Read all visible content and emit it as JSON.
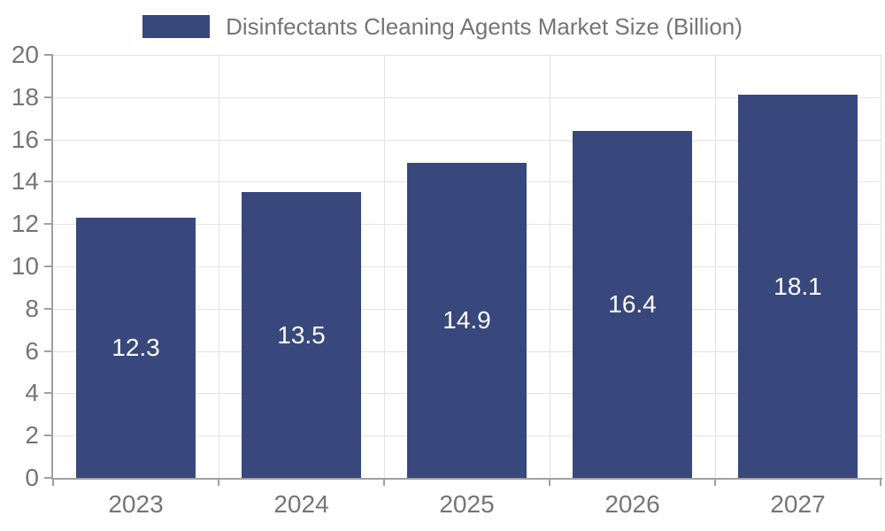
{
  "legend": {
    "label": "Disinfectants Cleaning Agents Market Size (Billion)"
  },
  "chart_data": {
    "type": "bar",
    "title": "Disinfectants Cleaning Agents Market Size (Billion)",
    "categories": [
      "2023",
      "2024",
      "2025",
      "2026",
      "2027"
    ],
    "values": [
      12.3,
      13.5,
      14.9,
      16.4,
      18.1
    ],
    "value_labels": [
      "12.3",
      "13.5",
      "14.9",
      "16.4",
      "18.1"
    ],
    "xlabel": "",
    "ylabel": "",
    "ylim": [
      0,
      20
    ],
    "ytick_step": 2,
    "yticks": [
      0,
      2,
      4,
      6,
      8,
      10,
      12,
      14,
      16,
      18,
      20
    ],
    "grid": true,
    "legend_position": "top-center",
    "bar_color": "#38487d",
    "value_label_color": "#ffffff",
    "grid_color": "#e3e3e3",
    "axis_color": "#a0a0a0",
    "tick_label_color": "#757575",
    "background_color": "#ffffff"
  }
}
